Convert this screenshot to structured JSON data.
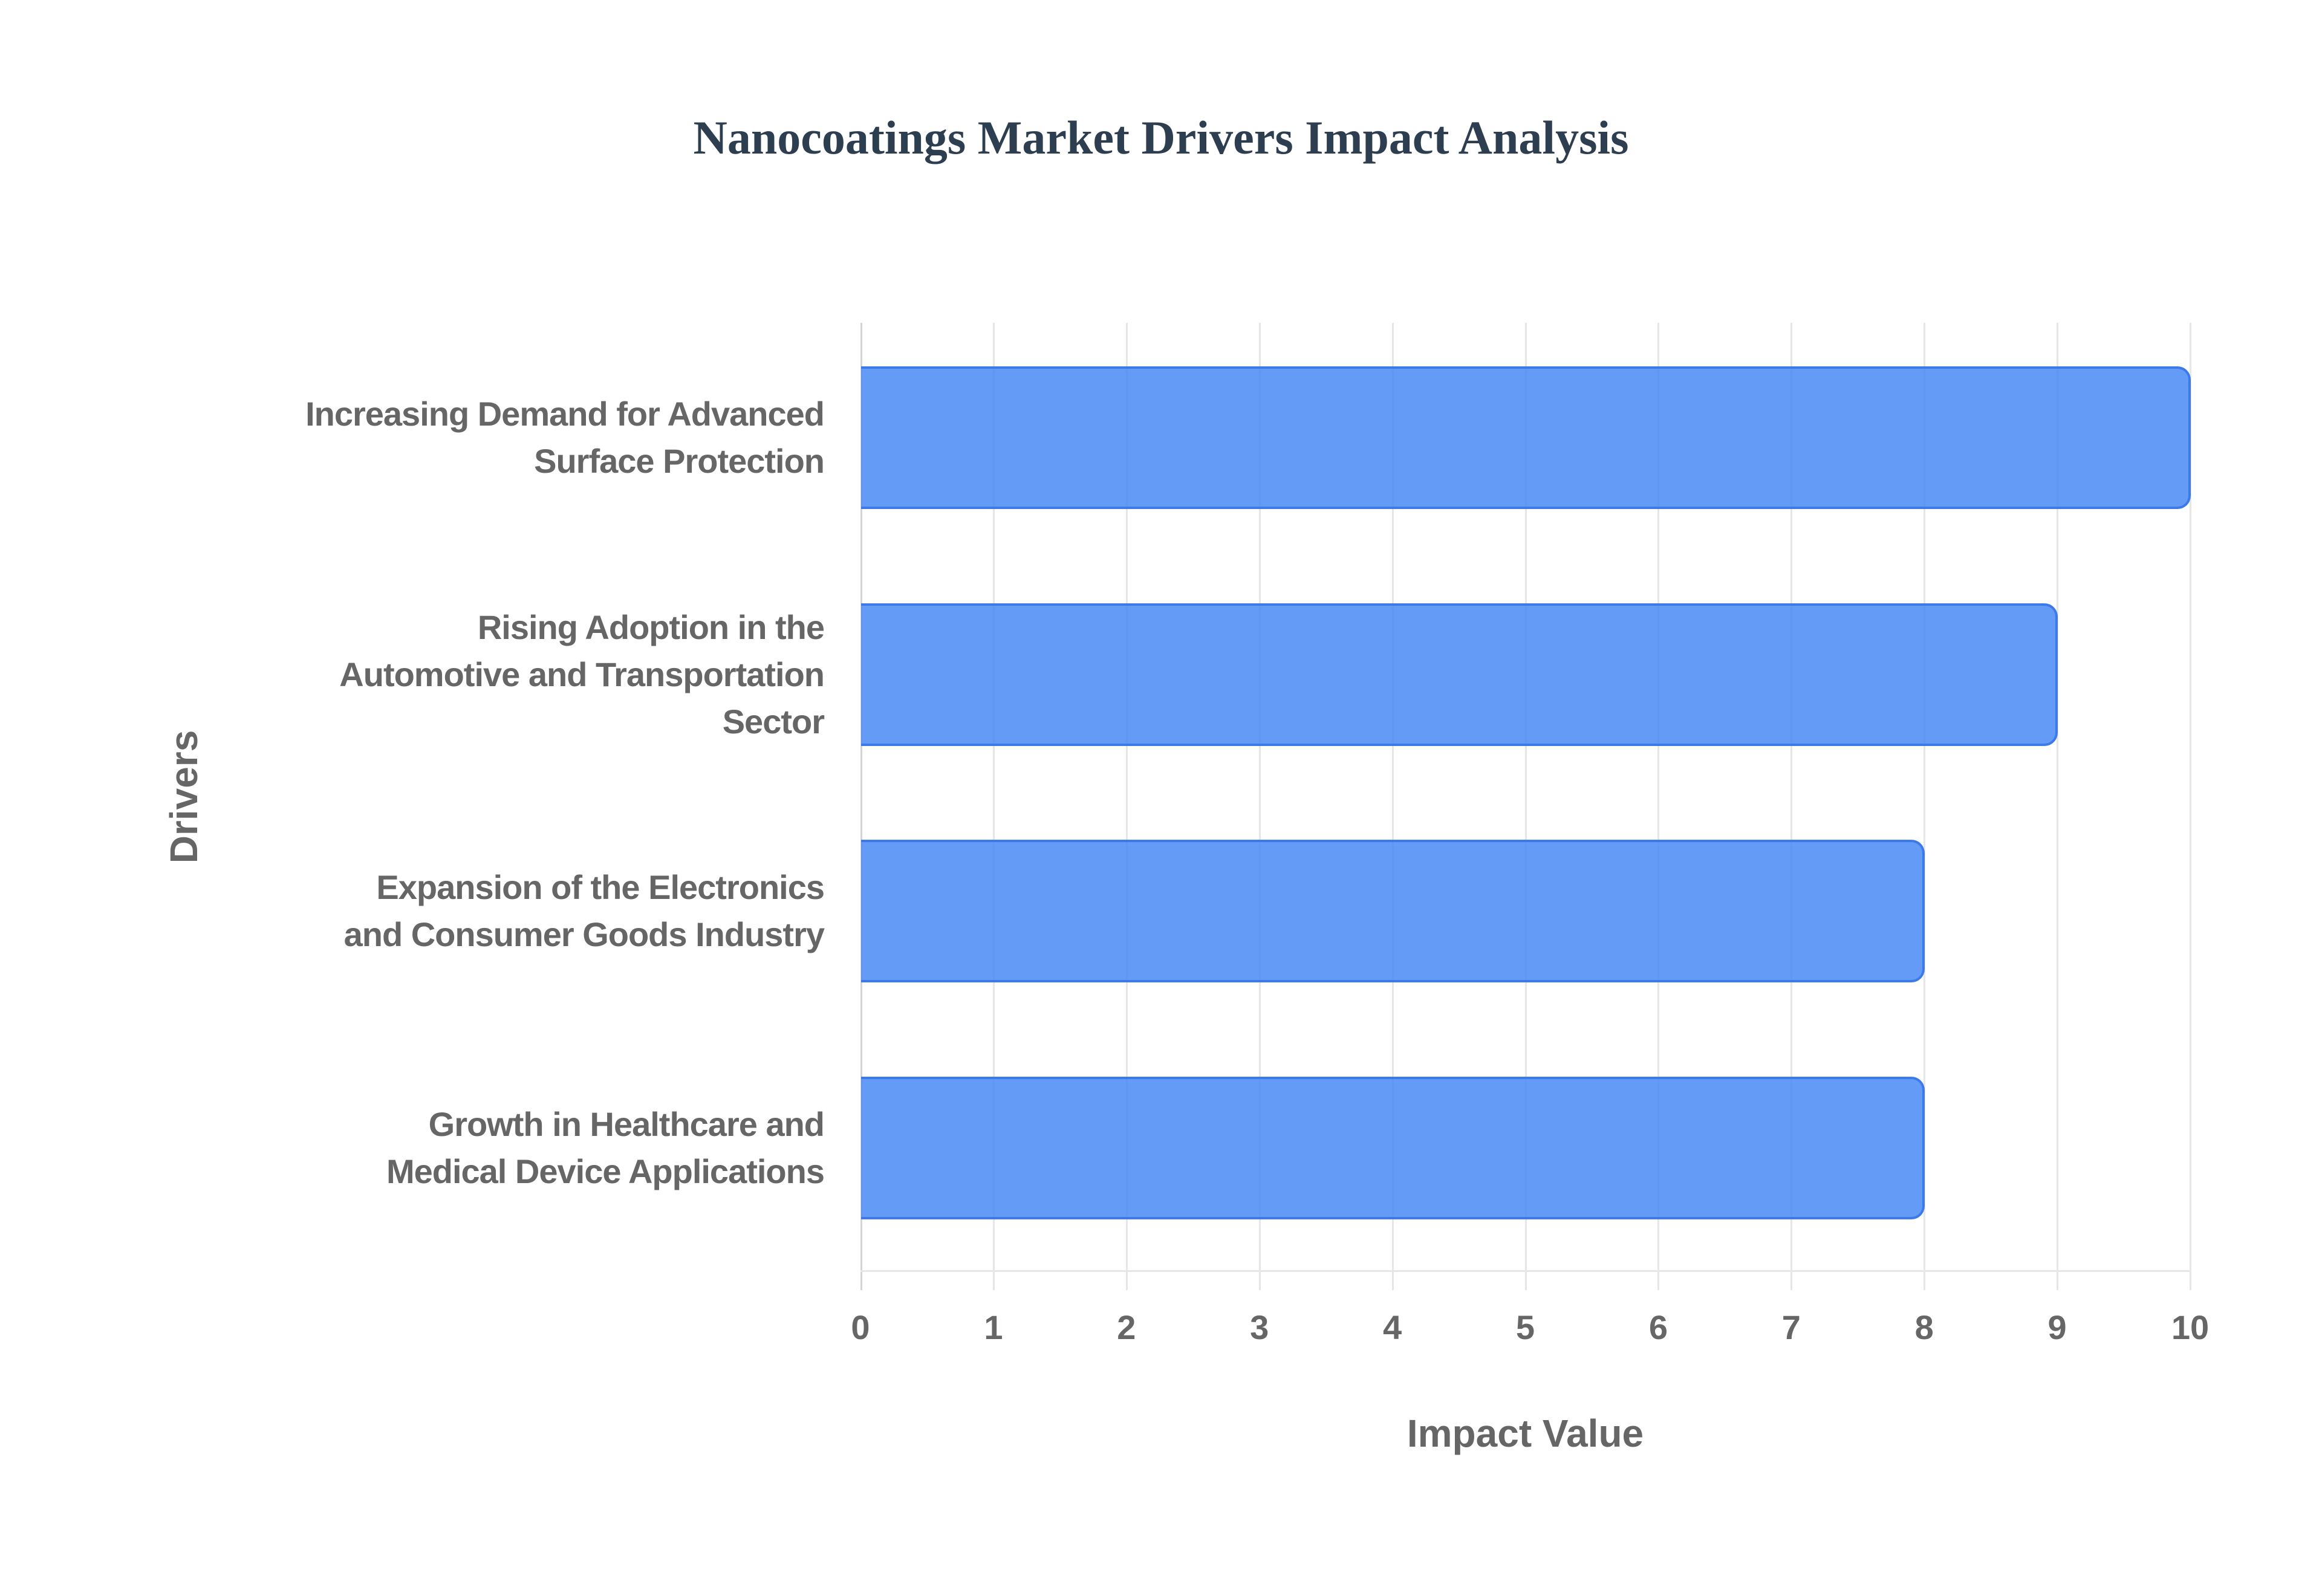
{
  "chart": {
    "title": "Nanocoatings Market Drivers Impact Analysis",
    "x_axis_title": "Impact Value",
    "y_axis_title": "Drivers",
    "x_ticks": [
      "0",
      "1",
      "2",
      "3",
      "4",
      "5",
      "6",
      "7",
      "8",
      "9",
      "10"
    ],
    "bar_color": "#4285f4",
    "bar_border_color": "#3b7ae8",
    "drivers": [
      {
        "label_lines": [
          "Increasing Demand for Advanced",
          "Surface Protection"
        ],
        "value": 10
      },
      {
        "label_lines": [
          "Rising Adoption in the",
          "Automotive and Transportation",
          "Sector"
        ],
        "value": 9
      },
      {
        "label_lines": [
          "Expansion of the Electronics",
          "and Consumer Goods Industry"
        ],
        "value": 8
      },
      {
        "label_lines": [
          "Growth in Healthcare and",
          "Medical Device Applications"
        ],
        "value": 8
      }
    ]
  },
  "chart_data": {
    "type": "bar",
    "orientation": "horizontal",
    "title": "Nanocoatings Market Drivers Impact Analysis",
    "xlabel": "Impact Value",
    "ylabel": "Drivers",
    "categories": [
      "Increasing Demand for Advanced Surface Protection",
      "Rising Adoption in the Automotive and Transportation Sector",
      "Expansion of the Electronics and Consumer Goods Industry",
      "Growth in Healthcare and Medical Device Applications"
    ],
    "values": [
      10,
      9,
      8,
      8
    ],
    "xlim": [
      0,
      10
    ],
    "x_ticks": [
      0,
      1,
      2,
      3,
      4,
      5,
      6,
      7,
      8,
      9,
      10
    ],
    "grid": true,
    "legend": null
  }
}
